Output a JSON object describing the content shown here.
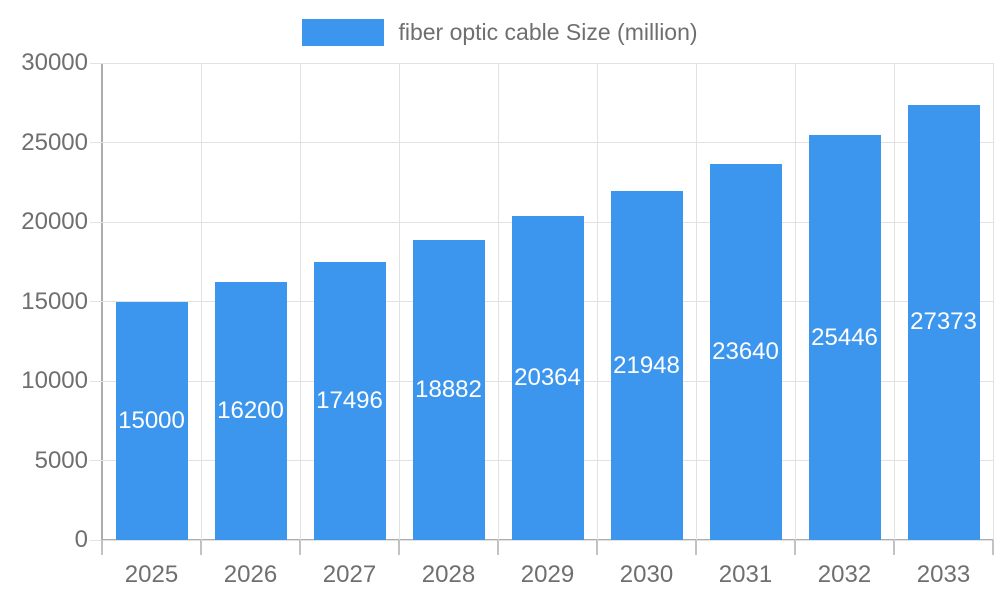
{
  "chart_data": {
    "type": "bar",
    "title": "",
    "xlabel": "",
    "ylabel": "",
    "legend": {
      "label": "fiber optic cable Size (million)",
      "position": "top-center"
    },
    "categories": [
      "2025",
      "2026",
      "2027",
      "2028",
      "2029",
      "2030",
      "2031",
      "2032",
      "2033"
    ],
    "series": [
      {
        "name": "fiber optic cable Size (million)",
        "values": [
          15000,
          16200,
          17496,
          18882,
          20364,
          21948,
          23640,
          25446,
          27373
        ]
      }
    ],
    "bar_labels_shown": true,
    "ylim": [
      0,
      30000
    ],
    "yticks": [
      0,
      5000,
      10000,
      15000,
      20000,
      25000,
      30000
    ],
    "grid": "both",
    "colors": {
      "bar": "#3d96ed",
      "grid": "#e2e2e2",
      "axis": "#acacac",
      "tick": "#c2c2c2",
      "text": "#6f6f6f",
      "bar_label": "#ffffff",
      "background": "#ffffff"
    }
  }
}
